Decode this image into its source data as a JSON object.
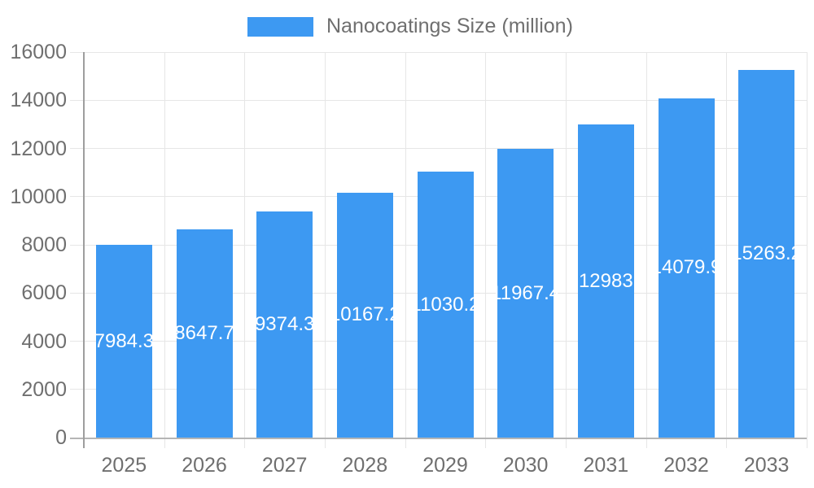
{
  "chart_data": {
    "type": "bar",
    "title": "Nanocoatings Size (million)",
    "legend_position": "top",
    "categories": [
      "2025",
      "2026",
      "2027",
      "2028",
      "2029",
      "2030",
      "2031",
      "2032",
      "2033"
    ],
    "values": [
      7984.3,
      8647.7,
      9374.3,
      10167.2,
      11030.2,
      11967.4,
      12983,
      14079.9,
      15263.2
    ],
    "bar_labels": [
      "7984.3",
      "8647.7",
      "9374.3",
      "10167.2",
      "11030.2",
      "11967.4",
      "12983",
      "14079.9",
      "15263.2"
    ],
    "xlabel": "",
    "ylabel": "",
    "ylim": [
      0,
      16000
    ],
    "ytick_step": 2000,
    "ytick_labels": [
      "0",
      "2000",
      "4000",
      "6000",
      "8000",
      "10000",
      "12000",
      "14000",
      "16000"
    ],
    "grid": true,
    "colors": {
      "bar": "#3D99F2",
      "grid_line": "#e6e6e6",
      "y_axis_line": "#9e9e9e",
      "x_axis_line": "#b5b5b5",
      "axis_text": "#6f6f6f",
      "bar_label_text": "#ffffff",
      "background": "#ffffff"
    }
  }
}
